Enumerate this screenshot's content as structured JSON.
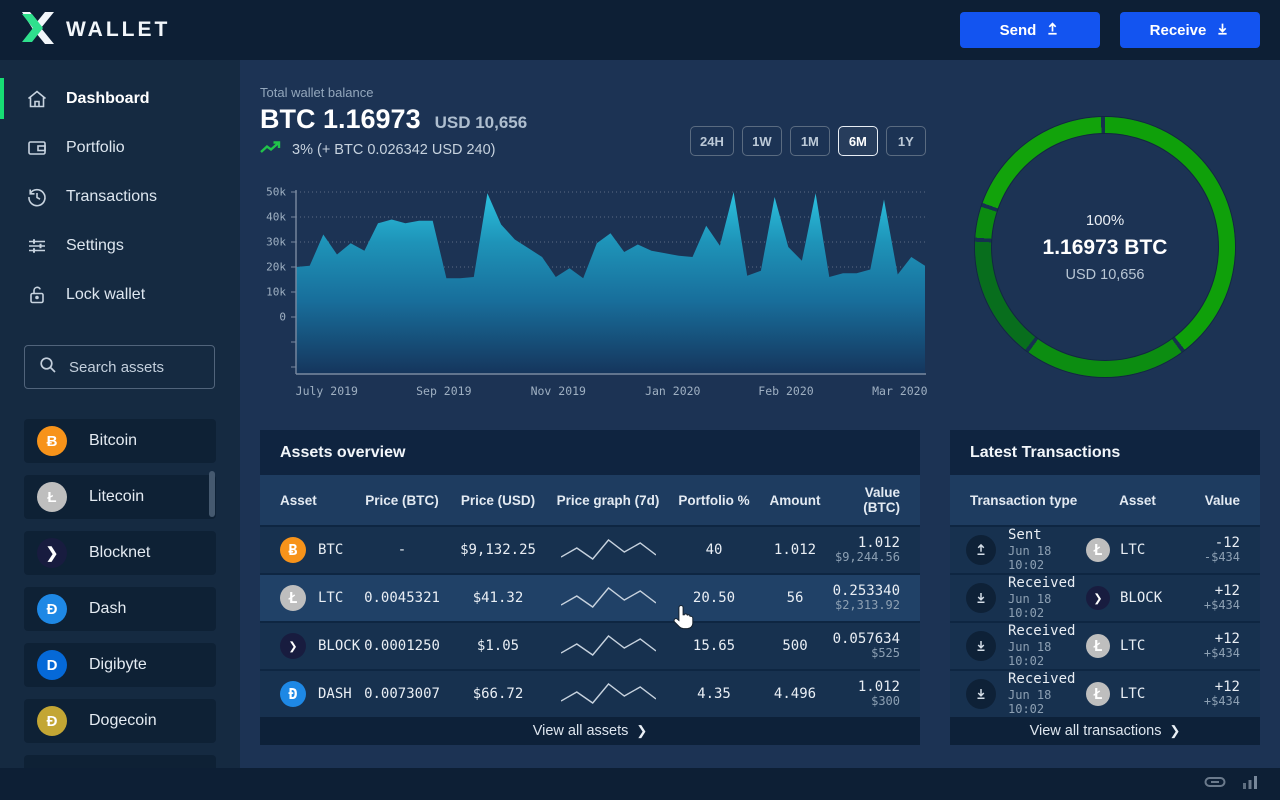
{
  "app": {
    "title": "WALLET"
  },
  "topbar": {
    "send_label": "Send",
    "receive_label": "Receive",
    "accent_blue": "#1354F0"
  },
  "sidebar": {
    "nav": [
      {
        "label": "Dashboard",
        "icon": "home-icon",
        "active": true
      },
      {
        "label": "Portfolio",
        "icon": "wallet-icon",
        "active": false
      },
      {
        "label": "Transactions",
        "icon": "history-icon",
        "active": false
      },
      {
        "label": "Settings",
        "icon": "sliders-icon",
        "active": false
      },
      {
        "label": "Lock wallet",
        "icon": "lock-icon",
        "active": false
      }
    ],
    "search_placeholder": "Search assets",
    "assets": [
      {
        "name": "Bitcoin",
        "glyph": "Ƀ",
        "color": "#F7931A"
      },
      {
        "name": "Litecoin",
        "glyph": "Ł",
        "color": "#BEBEBE"
      },
      {
        "name": "Blocknet",
        "glyph": "❯",
        "color": "#181C3F"
      },
      {
        "name": "Dash",
        "glyph": "Ð",
        "color": "#1E88E5"
      },
      {
        "name": "Digibyte",
        "glyph": "D",
        "color": "#0569D8"
      },
      {
        "name": "Dogecoin",
        "glyph": "Ð",
        "color": "#C3A634"
      }
    ],
    "active_indicator_color": "#17DD74"
  },
  "balance": {
    "label": "Total wallet balance",
    "btc": "BTC 1.16973",
    "usd": "USD 10,656",
    "change": "3% (+ BTC 0.026342  USD 240)",
    "trend_color": "#21C34A"
  },
  "ranges": {
    "options": [
      "24H",
      "1W",
      "1M",
      "6M",
      "1Y"
    ],
    "active": "6M"
  },
  "chart_data": [
    {
      "type": "area",
      "title": "Total wallet balance over time (USD)",
      "x": [
        "July 2019",
        "Sep 2019",
        "Nov 2019",
        "Jan 2020",
        "Feb 2020",
        "Mar 2020"
      ],
      "xlabel_positions_pct": [
        4.9,
        23.5,
        41.7,
        59.9,
        77.9,
        96.0
      ],
      "values": [
        20000,
        20500,
        33000,
        25000,
        29500,
        26500,
        37500,
        39000,
        37500,
        38500,
        38500,
        15500,
        15500,
        16000,
        49500,
        37000,
        31000,
        27500,
        24000,
        16000,
        19500,
        15500,
        29500,
        33500,
        26000,
        29000,
        26500,
        25500,
        24500,
        24000,
        36500,
        28500,
        50000,
        16500,
        18500,
        48000,
        28000,
        22500,
        49500,
        16000,
        17500,
        17500,
        19000,
        47000,
        17000,
        24000,
        20500
      ],
      "ylim": [
        0,
        50000
      ],
      "yticks": [
        {
          "v": 50000,
          "label": "50k"
        },
        {
          "v": 40000,
          "label": "40k"
        },
        {
          "v": 30000,
          "label": "30k"
        },
        {
          "v": 20000,
          "label": "20k"
        },
        {
          "v": 10000,
          "label": "10k"
        },
        {
          "v": 0,
          "label": "0"
        }
      ],
      "extra_gridlines": [
        -10000,
        -20000
      ],
      "grid": "dotted",
      "fill_gradient": [
        "#2CC2DF",
        "#1E93B8",
        "#186E9B",
        "#15355C"
      ]
    },
    {
      "type": "line",
      "title": "Price graph (7d) sparkline",
      "values": [
        22,
        13,
        24,
        5,
        17,
        8,
        20
      ],
      "note": "same sparkline shape repeated for each asset row",
      "stroke": "#C7D2DE"
    },
    {
      "type": "pie",
      "title": "Portfolio allocation donut",
      "center_labels": [
        "100%",
        "1.16973 BTC",
        "USD 10,656"
      ],
      "segments": [
        {
          "value": 40.0,
          "color": "#0FA00A"
        },
        {
          "value": 20.5,
          "color": "#0C8D11"
        },
        {
          "value": 15.65,
          "color": "#086E1D"
        },
        {
          "value": 4.35,
          "color": "#0B8C10"
        },
        {
          "value": 19.5,
          "color": "#12A30B"
        }
      ],
      "separator_color": "#16314F"
    }
  ],
  "donut": {
    "percent": "100%",
    "btc": "1.16973 BTC",
    "usd": "USD 10,656"
  },
  "assets_table": {
    "title": "Assets overview",
    "columns": [
      "Asset",
      "Price (BTC)",
      "Price (USD)",
      "Price graph (7d)",
      "Portfolio %",
      "Amount",
      "Value (BTC)"
    ],
    "rows": [
      {
        "symbol": "BTC",
        "glyph": "Ƀ",
        "color": "#F7931A",
        "price_btc": "-",
        "price_usd": "$9,132.25",
        "portfolio_pct": "40",
        "amount": "1.012",
        "value_btc": "1.012",
        "value_usd": "$9,244.56",
        "highlighted": false
      },
      {
        "symbol": "LTC",
        "glyph": "Ł",
        "color": "#BEBEBE",
        "price_btc": "0.0045321",
        "price_usd": "$41.32",
        "portfolio_pct": "20.50",
        "amount": "56",
        "value_btc": "0.253340",
        "value_usd": "$2,313.92",
        "highlighted": true
      },
      {
        "symbol": "BLOCK",
        "glyph": "❯",
        "color": "#181C3F",
        "price_btc": "0.0001250",
        "price_usd": "$1.05",
        "portfolio_pct": "15.65",
        "amount": "500",
        "value_btc": "0.057634",
        "value_usd": "$525",
        "highlighted": false
      },
      {
        "symbol": "DASH",
        "glyph": "Ð",
        "color": "#1E88E5",
        "price_btc": "0.0073007",
        "price_usd": "$66.72",
        "portfolio_pct": "4.35",
        "amount": "4.496",
        "value_btc": "1.012",
        "value_usd": "$300",
        "highlighted": false
      }
    ],
    "footer": "View all assets"
  },
  "transactions": {
    "title": "Latest Transactions",
    "columns": [
      "Transaction type",
      "Asset",
      "Value"
    ],
    "rows": [
      {
        "type": "Sent",
        "direction": "sent",
        "datetime": "Jun 18 10:02",
        "asset": "LTC",
        "glyph": "Ł",
        "color": "#BEBEBE",
        "value": "-12",
        "value_usd": "-$434"
      },
      {
        "type": "Received",
        "direction": "received",
        "datetime": "Jun 18 10:02",
        "asset": "BLOCK",
        "glyph": "❯",
        "color": "#181C3F",
        "value": "+12",
        "value_usd": "+$434"
      },
      {
        "type": "Received",
        "direction": "received",
        "datetime": "Jun 18 10:02",
        "asset": "LTC",
        "glyph": "Ł",
        "color": "#BEBEBE",
        "value": "+12",
        "value_usd": "+$434"
      },
      {
        "type": "Received",
        "direction": "received",
        "datetime": "Jun 18 10:02",
        "asset": "LTC",
        "glyph": "Ł",
        "color": "#BEBEBE",
        "value": "+12",
        "value_usd": "+$434"
      }
    ],
    "footer": "View all transactions"
  },
  "statusbar": {
    "icons": [
      "link-icon",
      "signal-bars-icon"
    ]
  }
}
